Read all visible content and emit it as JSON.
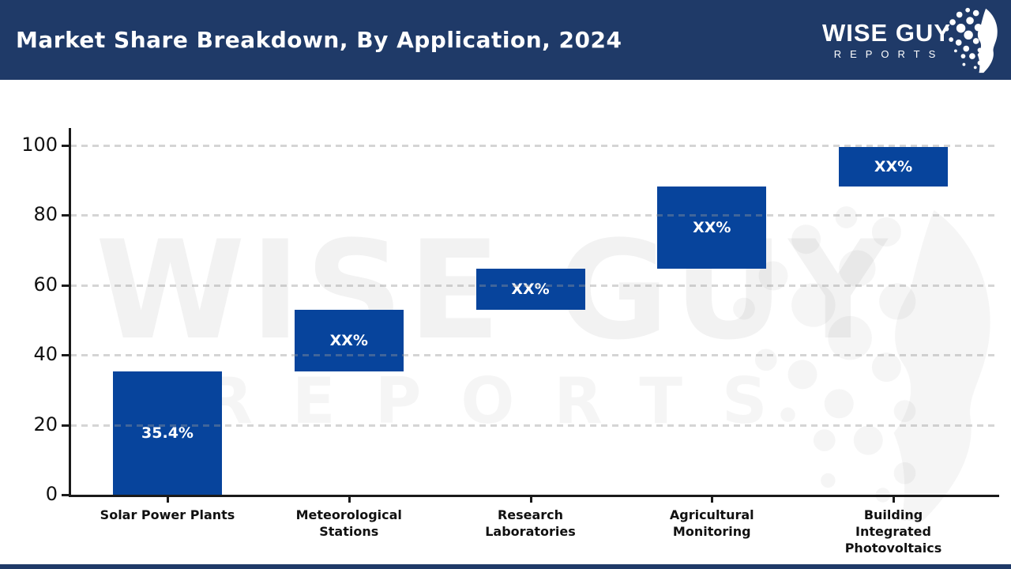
{
  "header": {
    "title": "Market Share Breakdown, By Application, 2024",
    "background_color": "#1f3a68",
    "logo": {
      "line1": "WISE GUY",
      "line2": "REPORTS"
    }
  },
  "watermark": {
    "line1": "WISE GUY",
    "line2": "REPORTS"
  },
  "footer": {
    "background_color": "#1f3a68"
  },
  "chart_data": {
    "type": "bar",
    "subtype": "waterfall",
    "title": "Market Share Breakdown, By Application, 2024",
    "xlabel": "",
    "ylabel": "",
    "ylim": [
      0,
      100
    ],
    "yticks": [
      0,
      20,
      40,
      60,
      80,
      100
    ],
    "grid": "dashed horizontal gridlines",
    "legend": "none",
    "bar_color": "#07449c",
    "bar_label_color": "#ffffff",
    "categories": [
      "Solar Power Plants",
      "Meteorological Stations",
      "Research Laboratories",
      "Agricultural Monitoring",
      "Building Integrated Photovoltaics"
    ],
    "categories_display": [
      "Solar Power Plants",
      "Meteorological\nStations",
      "Research\nLaboratories",
      "Agricultural\nMonitoring",
      "Building\nIntegrated\nPhotovoltaics"
    ],
    "series": [
      {
        "name": "Market Share",
        "segments": [
          {
            "category": "Solar Power Plants",
            "start": 0,
            "end": 35.4,
            "label": "35.4%"
          },
          {
            "category": "Meteorological Stations",
            "start": 35.4,
            "end": 53.0,
            "label": "XX%"
          },
          {
            "category": "Research Laboratories",
            "start": 53.0,
            "end": 64.7,
            "label": "XX%"
          },
          {
            "category": "Agricultural Monitoring",
            "start": 64.7,
            "end": 88.2,
            "label": "XX%"
          },
          {
            "category": "Building Integrated Photovoltaics",
            "start": 88.2,
            "end": 99.5,
            "label": "XX%"
          }
        ]
      }
    ]
  }
}
